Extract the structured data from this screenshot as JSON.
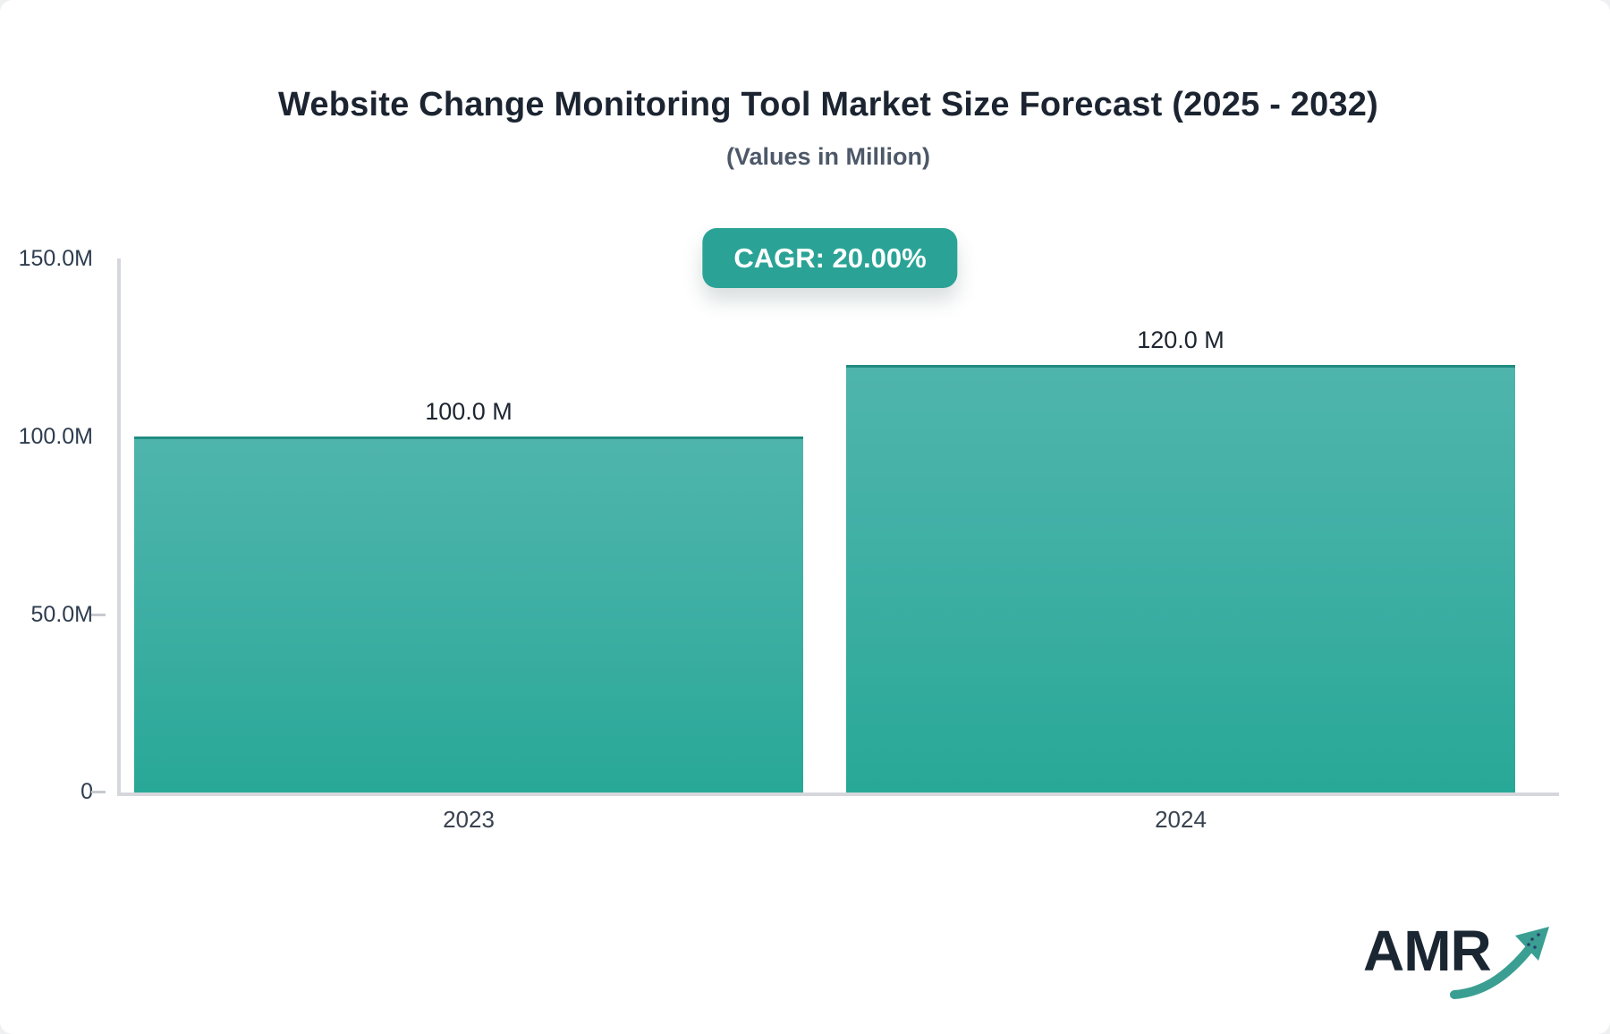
{
  "header": {
    "title": "Website Change Monitoring Tool Market Size Forecast (2025 - 2032)",
    "subtitle": "(Values in Million)"
  },
  "badge": {
    "label": "CAGR: 20.00%",
    "background": "#2aa396",
    "text_color": "#ffffff"
  },
  "chart_data": {
    "type": "bar",
    "title": "Website Change Monitoring Tool Market Size Forecast (2025 - 2032)",
    "subtitle": "(Values in Million)",
    "cagr_percent": "20.00%",
    "categories": [
      "2023",
      "2024"
    ],
    "values": [
      100.0,
      120.0
    ],
    "value_labels": [
      "100.0 M",
      "120.0 M"
    ],
    "xlabel": "",
    "ylabel": "",
    "ylim": [
      0,
      150
    ],
    "yticks": [
      {
        "value": 150,
        "label": "150.0M"
      },
      {
        "value": 100,
        "label": "100.0M"
      },
      {
        "value": 50,
        "label": "50.0M"
      },
      {
        "value": 0,
        "label": "0"
      }
    ],
    "grid": false,
    "legend": false,
    "bar_color_top": "#4fb5ac",
    "bar_color_bottom": "#28a897",
    "bar_border_top_color": "#218b81",
    "axis_color": "#d5d7dc"
  },
  "logo": {
    "text": "AMR",
    "text_color": "#1a2631",
    "arrow_color": "#3a9f92"
  }
}
